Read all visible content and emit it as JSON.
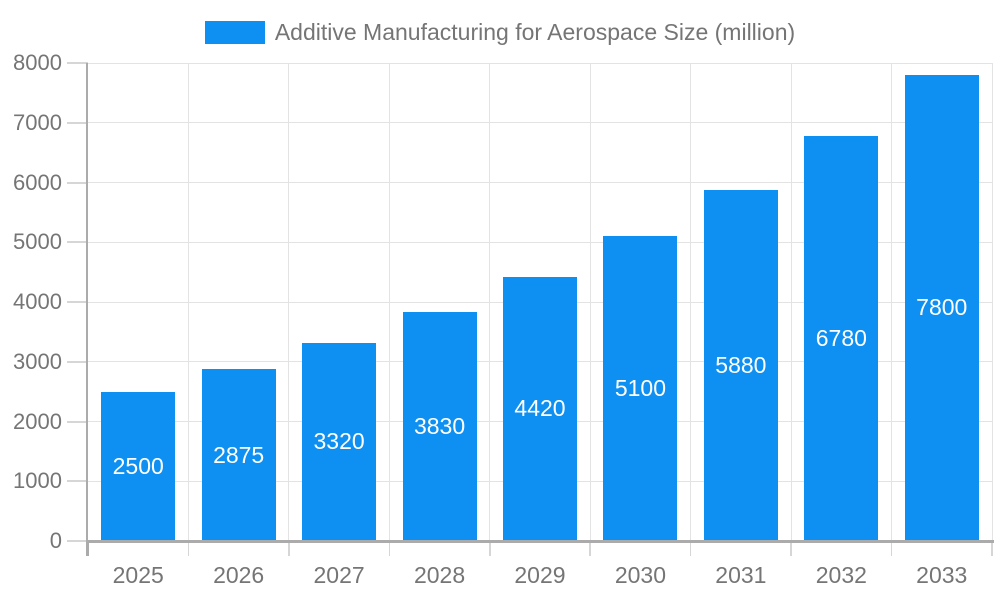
{
  "legend": {
    "label": "Additive Manufacturing for Aerospace Size (million)"
  },
  "chart_data": {
    "type": "bar",
    "title": "Additive Manufacturing for Aerospace Size (million)",
    "legend_position": "top",
    "categories": [
      "2025",
      "2026",
      "2027",
      "2028",
      "2029",
      "2030",
      "2031",
      "2032",
      "2033"
    ],
    "series": [
      {
        "name": "Additive Manufacturing for Aerospace Size (million)",
        "values": [
          2500,
          2875,
          3320,
          3830,
          4420,
          5100,
          5880,
          6780,
          7800
        ],
        "color": "#0e90f2"
      }
    ],
    "xlabel": "",
    "ylabel": "",
    "ylim": [
      0,
      8000
    ],
    "y_ticks": [
      0,
      1000,
      2000,
      3000,
      4000,
      5000,
      6000,
      7000,
      8000
    ],
    "grid": true,
    "value_labels_shown": true,
    "value_label_color": "#ffffff"
  },
  "colors": {
    "bar": "#0e90f2",
    "grid": "#e3e3e3",
    "axis": "#ababab",
    "tick": "#d6d6d6",
    "text": "#757575",
    "value_label": "#ffffff",
    "background": "#ffffff"
  }
}
